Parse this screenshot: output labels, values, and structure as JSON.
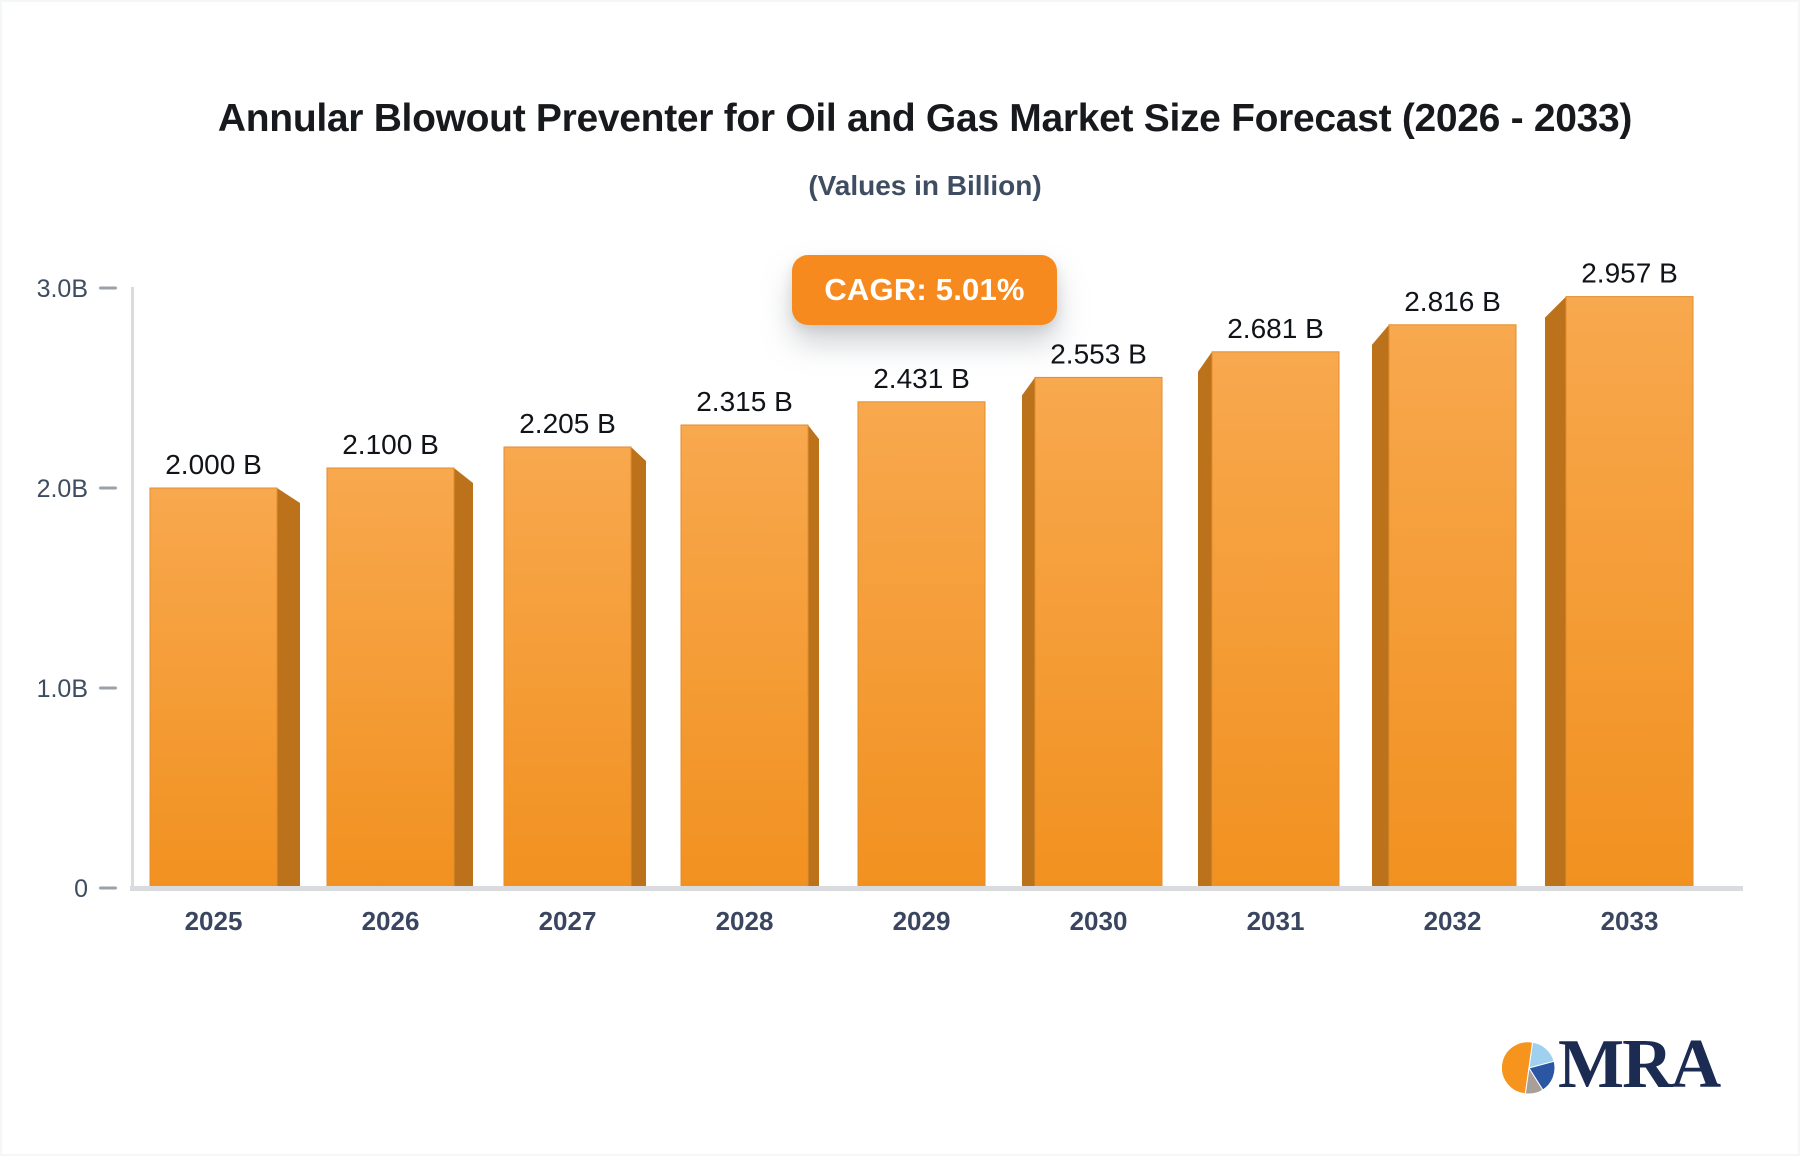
{
  "title": "Annular Blowout Preventer for Oil and Gas Market Size Forecast (2026 - 2033)",
  "subtitle": "(Values in Billion)",
  "badge": {
    "label": "CAGR: 5.01%",
    "cagr_value": "5.01%"
  },
  "chart_data": {
    "type": "bar",
    "title": "Annular Blowout Preventer for Oil and Gas Market Size Forecast (2026 - 2033)",
    "subtitle": "(Values in Billion)",
    "unit": "Billion",
    "categories": [
      "2025",
      "2026",
      "2027",
      "2028",
      "2029",
      "2030",
      "2031",
      "2032",
      "2033"
    ],
    "values": [
      2.0,
      2.1,
      2.205,
      2.315,
      2.431,
      2.553,
      2.681,
      2.816,
      2.957
    ],
    "bar_labels": [
      "2.000 B",
      "2.100 B",
      "2.205 B",
      "2.315 B",
      "2.431 B",
      "2.553 B",
      "2.681 B",
      "2.816 B",
      "2.957 B"
    ],
    "xlabel": "",
    "ylabel": "",
    "ylim": [
      0,
      3.2
    ],
    "y_tick_values": [
      0,
      1,
      2,
      3
    ],
    "y_tick_labels": [
      "0",
      "1.0B",
      "2.0B",
      "3.0B"
    ],
    "grid": false,
    "legend": false,
    "cagr": "5.01%"
  },
  "logo": {
    "text": "MRA",
    "icon": "pie-chart-icon"
  },
  "colors": {
    "bar_face_top": "#F8A84E",
    "bar_face_bottom": "#F19120",
    "bar_face_edge": "#E18E2E",
    "bar_side": "#BC721B",
    "badge_bg": "#F68A1F",
    "axis_line": "#D9DBDF",
    "tick_mark": "#9AA1A9",
    "axis_text": "#3E4C61",
    "category_text": "#3A4660",
    "value_text": "#101318",
    "title_text": "#17191C",
    "subtitle_text": "#3E4D61",
    "logo_navy": "#1B2B52",
    "logo_pie_orange": "#F7941E",
    "logo_pie_lightblue": "#9FD0EE",
    "logo_pie_blue": "#2B56A4",
    "logo_pie_gray": "#A89F98"
  }
}
